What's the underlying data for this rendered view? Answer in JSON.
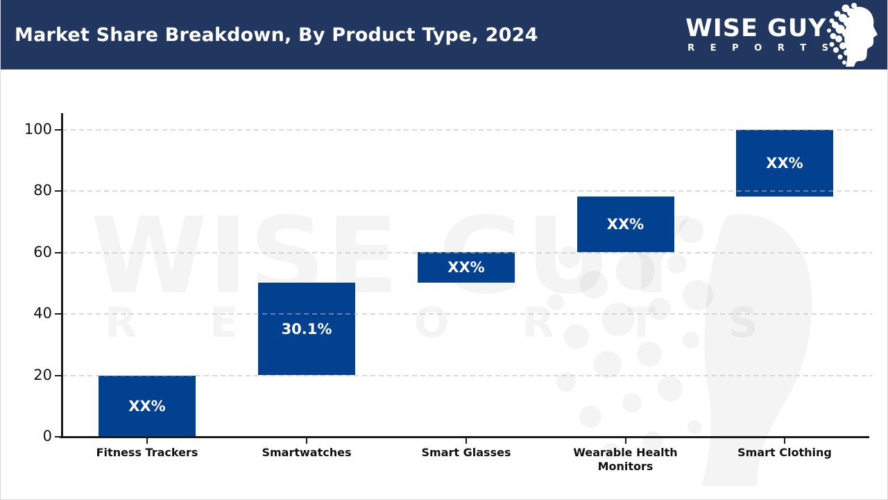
{
  "header": {
    "title": "Market Share Breakdown, By Product Type, 2024",
    "header_bg_color": "#213760",
    "logo": {
      "line1": "WISE GUY",
      "line2": "R E P O R T S"
    }
  },
  "watermark": {
    "line1": "WISE GUY",
    "line2": "R E P O R T S"
  },
  "chart_data": {
    "type": "bar",
    "subtype": "waterfall",
    "title": "Market Share Breakdown, By Product Type, 2024",
    "xlabel": "",
    "ylabel": "",
    "categories": [
      "Fitness Trackers",
      "Smartwatches",
      "Smart Glasses",
      "Wearable Health Monitors",
      "Smart Clothing"
    ],
    "series": [
      {
        "name": "Market Share (%)",
        "segments": [
          {
            "category": "Fitness Trackers",
            "start": 0,
            "end": 20,
            "value": 20,
            "label": "XX%"
          },
          {
            "category": "Smartwatches",
            "start": 20,
            "end": 50.1,
            "value": 30.1,
            "label": "30.1%"
          },
          {
            "category": "Smart Glasses",
            "start": 50.1,
            "end": 60.1,
            "value": 10,
            "label": "XX%"
          },
          {
            "category": "Wearable Health Monitors",
            "start": 60.1,
            "end": 78.2,
            "value": 18.1,
            "label": "XX%"
          },
          {
            "category": "Smart Clothing",
            "start": 78.2,
            "end": 100,
            "value": 21.8,
            "label": "XX%"
          }
        ]
      }
    ],
    "yticks": [
      0,
      20,
      40,
      60,
      80,
      100
    ],
    "ylim": [
      0,
      105
    ],
    "grid": "horizontal-dashed",
    "legend": "none",
    "bar_color": "#02418f",
    "bar_label_color": "#ffffff",
    "axis_color": "#1a1a1a"
  }
}
